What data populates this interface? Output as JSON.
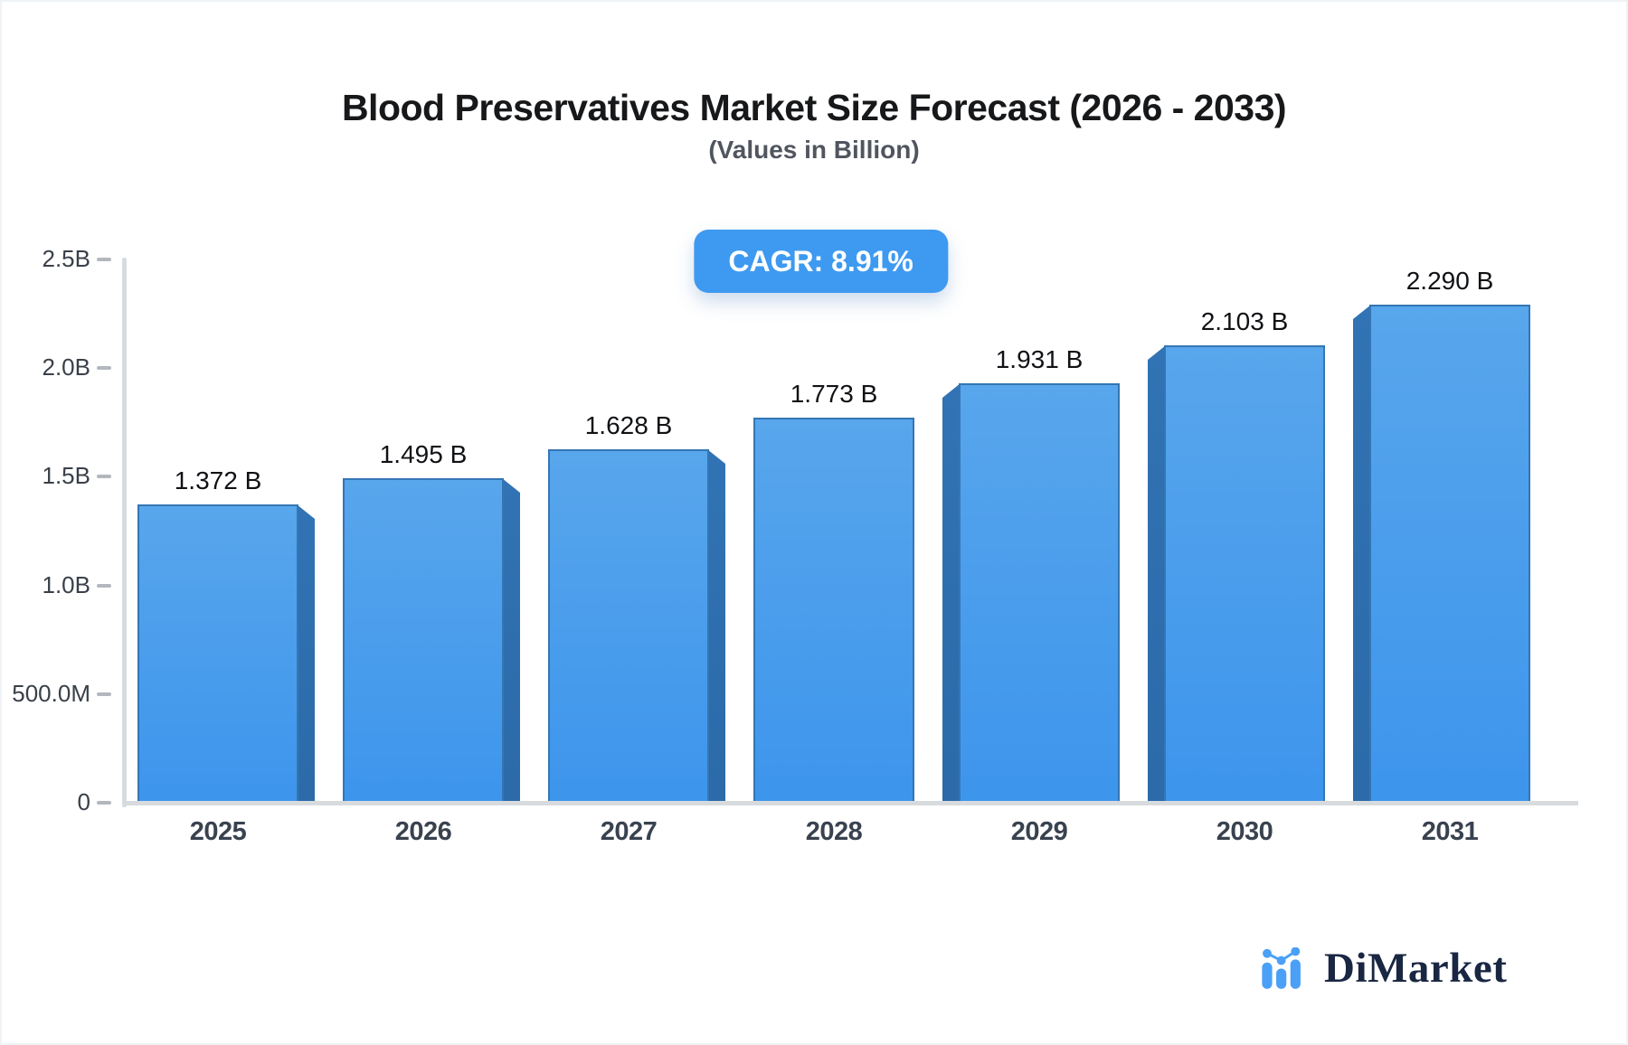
{
  "title": "Blood Preservatives Market Size Forecast (2026 - 2033)",
  "subtitle": "(Values in Billion)",
  "cagr_badge": {
    "label": "CAGR: 8.91%",
    "background": "#3e9af0",
    "text_color": "#ffffff"
  },
  "chart_data": {
    "type": "bar",
    "title": "Blood Preservatives Market Size Forecast (2026 - 2033)",
    "subtitle": "(Values in Billion)",
    "categories": [
      "2025",
      "2026",
      "2027",
      "2028",
      "2029",
      "2030",
      "2031"
    ],
    "values": [
      1.372,
      1.495,
      1.628,
      1.773,
      1.931,
      2.103,
      2.29
    ],
    "value_labels": [
      "1.372 B",
      "1.495 B",
      "1.628 B",
      "1.773 B",
      "1.931 B",
      "2.103 B",
      "2.290 B"
    ],
    "bar_3d_side": [
      "right",
      "right",
      "right",
      "none",
      "left",
      "left",
      "left"
    ],
    "xlabel": "",
    "ylabel": "",
    "ylim": [
      0,
      2.5
    ],
    "grid": false,
    "legend": false,
    "y_ticks": [
      {
        "label": "2.5B",
        "value": 2.5
      },
      {
        "label": "2.0B",
        "value": 2.0
      },
      {
        "label": "1.5B",
        "value": 1.5
      },
      {
        "label": "1.0B",
        "value": 1.0
      },
      {
        "label": "500.0M",
        "value": 0.5
      },
      {
        "label": "0",
        "value": 0
      }
    ],
    "colors": {
      "bar_face_top": "#58a6ec",
      "bar_face_bottom": "#3d95ec",
      "bar_face_border": "#3476b4",
      "bar_side_dark": "#3173b4",
      "bar_side_darker": "#2c6aa9",
      "axis_line": "#d8dbde",
      "tick_dash": "#b3b8be"
    }
  },
  "logo": {
    "text": "DiMarket",
    "icon": "bar-chart-logo-icon",
    "icon_color": "#4aa0f6",
    "text_color": "#1a2742"
  }
}
